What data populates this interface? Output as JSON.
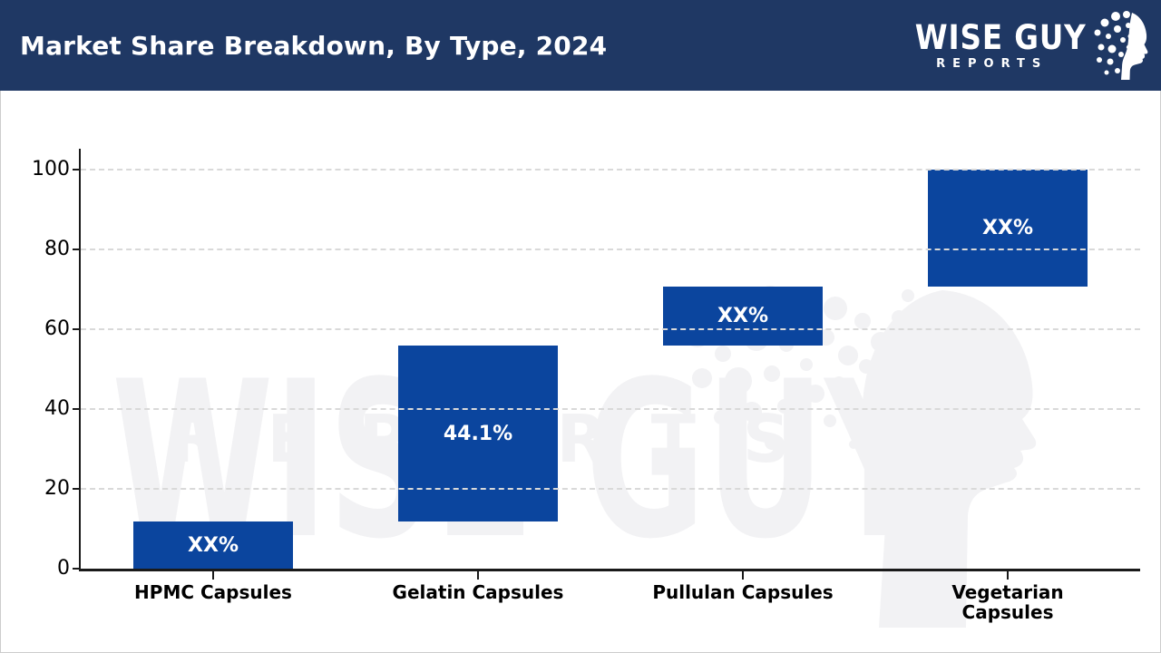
{
  "header": {
    "title": "Market Share Breakdown, By Type, 2024",
    "logo": {
      "name": "WISE GUY",
      "sub": "REPORTS"
    }
  },
  "watermark": {
    "big": "WISE GUY",
    "sub": "REPORTS"
  },
  "chart_data": {
    "type": "bar",
    "subtype": "floating-segment-waterfall",
    "title": "Market Share Breakdown, By Type, 2024",
    "categories": [
      "HPMC Capsules",
      "Gelatin Capsules",
      "Pullulan Capsules",
      "Vegetarian\nCapsules"
    ],
    "segments": [
      {
        "category": "HPMC Capsules",
        "start": 0,
        "end": 11.8,
        "label": "XX%"
      },
      {
        "category": "Gelatin Capsules",
        "start": 11.8,
        "end": 55.9,
        "label": "44.1%"
      },
      {
        "category": "Pullulan Capsules",
        "start": 55.9,
        "end": 70.7,
        "label": "XX%"
      },
      {
        "category": "Vegetarian Capsules",
        "start": 70.7,
        "end": 100,
        "label": "XX%"
      }
    ],
    "ylim": [
      0,
      100
    ],
    "yticks": [
      0,
      20,
      40,
      60,
      80,
      100
    ],
    "xlabel": "",
    "ylabel": "",
    "grid": "horizontal-dashed",
    "legend": "none",
    "bar_color": "#0B459E",
    "bar_label_color": "#FFFFFF"
  },
  "colors": {
    "header_bg": "#1F3864",
    "bar": "#0B459E",
    "grid": "#D9D9D9",
    "axis": "#1A1A1A",
    "watermark": "#F2F2F4",
    "border": "#CCCCCC"
  }
}
